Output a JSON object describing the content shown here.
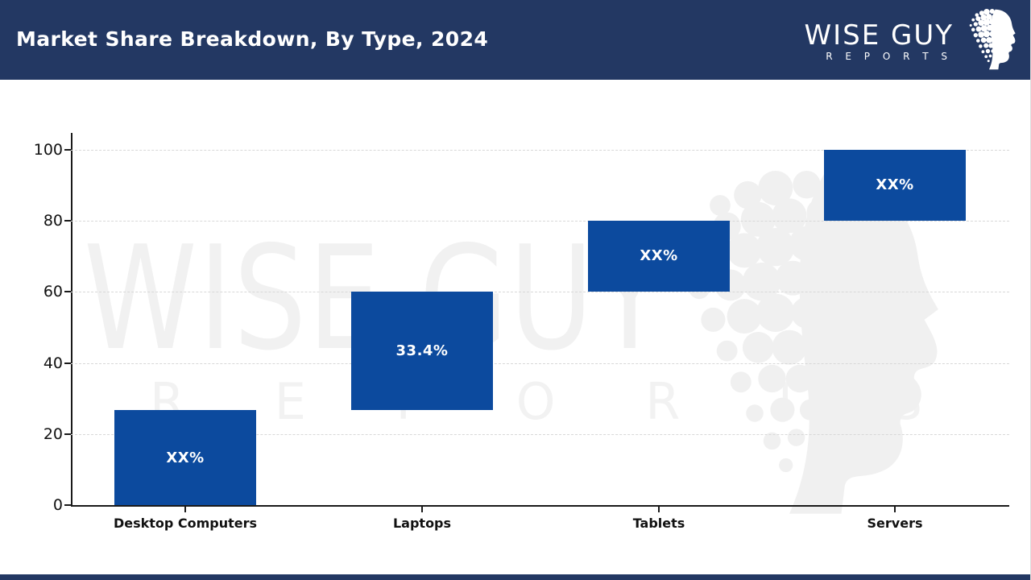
{
  "header": {
    "title": "Market Share Breakdown, By Type, 2024",
    "bg_color": "#233863",
    "logo": {
      "line1": "WISE GUY",
      "line2": "R E P O R T S"
    }
  },
  "watermark": {
    "line1": "WISE GUY",
    "line2": "R E P O R T S"
  },
  "footer": {
    "bg_color": "#233863"
  },
  "chart_data": {
    "type": "bar",
    "subtype": "floating-waterfall",
    "title": "Market Share Breakdown, By Type, 2024",
    "categories": [
      "Desktop Computers",
      "Laptops",
      "Tablets",
      "Servers"
    ],
    "series": [
      {
        "name": "Market Share (%)",
        "starts": [
          0,
          26.7,
          60.1,
          80.1
        ],
        "values": [
          26.7,
          33.4,
          20.0,
          20.0
        ]
      }
    ],
    "bar_labels": [
      "XX%",
      "33.4%",
      "XX%",
      "XX%"
    ],
    "xlabel": "",
    "ylabel": "",
    "ylim": [
      0,
      104.8
    ],
    "yticks": [
      0,
      20,
      40,
      60,
      80,
      100
    ],
    "grid": "horizontal-dashed",
    "legend": "none",
    "bar_color": "#0c4a9e",
    "label_color": "#ffffff"
  }
}
